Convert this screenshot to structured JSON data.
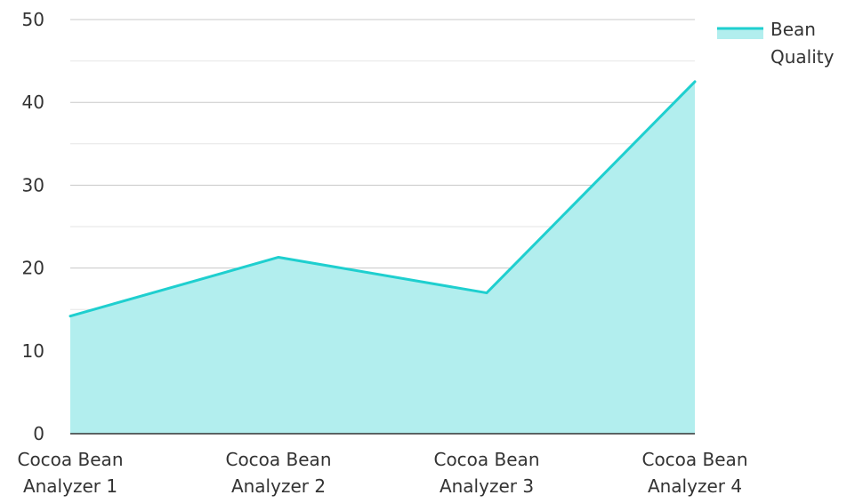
{
  "chart_data": {
    "type": "area",
    "title": "",
    "xlabel": "",
    "ylabel": "",
    "categories": [
      [
        "Cocoa Bean",
        "Analyzer 1"
      ],
      [
        "Cocoa Bean",
        "Analyzer 2"
      ],
      [
        "Cocoa Bean",
        "Analyzer 3"
      ],
      [
        "Cocoa Bean",
        "Analyzer 4"
      ]
    ],
    "series": [
      {
        "name": "Bean Quality",
        "legend_lines": [
          "Bean",
          "Quality"
        ],
        "values": [
          14.2,
          21.3,
          17.0,
          42.5
        ],
        "line_color": "#1FCFCF",
        "fill_color": "#B2EEEE"
      }
    ],
    "ylim": [
      0,
      50
    ],
    "y_ticks": [
      0,
      10,
      20,
      30,
      40,
      50
    ],
    "grid": true,
    "legend_position": "top-right"
  }
}
